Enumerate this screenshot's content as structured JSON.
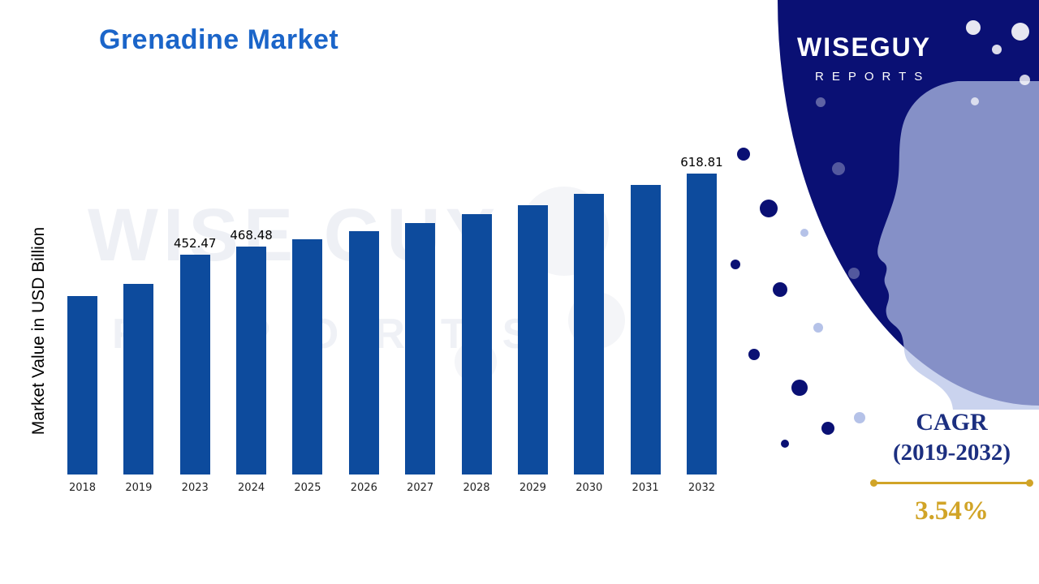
{
  "page": {
    "title": "Grenadine Market"
  },
  "watermark": {
    "line1": "WISE GUY",
    "line2": "REPORTS"
  },
  "brand": {
    "name": "WISEGUY",
    "sub": "REPORTS"
  },
  "cagr": {
    "label": "CAGR",
    "range": "(2019-2032)",
    "value": "3.54%"
  },
  "colors": {
    "bar_blue": "#0d4b9d",
    "panel_navy": "#0a1074",
    "title_blue": "#1b65c9",
    "accent_gold": "#d1a427",
    "face_periwinkle": "#b5c2e8"
  },
  "chart_data": {
    "type": "bar",
    "title": "Grenadine Market",
    "xlabel": "",
    "ylabel": "Market Value in USD Billion",
    "categories": [
      "2018",
      "2019",
      "2023",
      "2024",
      "2025",
      "2026",
      "2027",
      "2028",
      "2029",
      "2030",
      "2031",
      "2032"
    ],
    "values": [
      367,
      392,
      452.47,
      468.48,
      483,
      500,
      517,
      535,
      553,
      577,
      595,
      618.81
    ],
    "data_labels": {
      "2023": "452.47",
      "2024": "468.48",
      "2032": "618.81"
    },
    "bar_color": "#0d4b9d",
    "ylim": [
      0,
      650
    ],
    "grid": false,
    "legend": false,
    "cagr_percent": "3.54%",
    "cagr_period": "(2019-2032)"
  }
}
